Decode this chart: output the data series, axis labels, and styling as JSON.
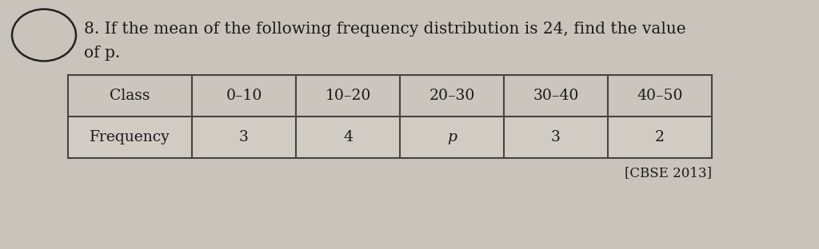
{
  "title_line1": "8. If the mean of the following frequency distribution is 24, find the value",
  "title_line2": "of p.",
  "col_header": [
    "Class",
    "0–10",
    "10–20",
    "20–30",
    "30–40",
    "40–50"
  ],
  "row_label": "Frequency",
  "row_values": [
    "3",
    "4",
    "p",
    "3",
    "2"
  ],
  "citation": "[CBSE 2013]",
  "bg_color": "#c8c4bc",
  "table_header_bg": "#cac6be",
  "table_row_bg": "#d0ccc4",
  "text_color": "#1a1a1a",
  "border_color": "#444444",
  "title_fontsize": 14.5,
  "table_fontsize": 13.5,
  "citation_fontsize": 12
}
